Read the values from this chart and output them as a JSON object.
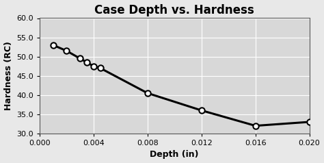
{
  "title": "Case Depth vs. Hardness",
  "xlabel": "Depth (in)",
  "ylabel": "Hardness (RC)",
  "x": [
    0.001,
    0.002,
    0.003,
    0.0035,
    0.004,
    0.0045,
    0.008,
    0.012,
    0.016,
    0.02
  ],
  "y": [
    53.0,
    51.5,
    49.5,
    48.5,
    47.5,
    47.0,
    40.5,
    36.0,
    32.0,
    33.0
  ],
  "xlim": [
    0.0,
    0.02
  ],
  "ylim": [
    30.0,
    60.0
  ],
  "xticks": [
    0.0,
    0.004,
    0.008,
    0.012,
    0.016,
    0.02
  ],
  "yticks": [
    30.0,
    35.0,
    40.0,
    45.0,
    50.0,
    55.0,
    60.0
  ],
  "line_color": "#000000",
  "marker_face": "#ffffff",
  "marker_edge": "#000000",
  "fig_background": "#e8e8e8",
  "plot_background": "#d8d8d8",
  "grid_color": "#ffffff",
  "title_fontsize": 12,
  "label_fontsize": 9,
  "tick_fontsize": 8,
  "line_width": 2.2,
  "marker_size": 6
}
